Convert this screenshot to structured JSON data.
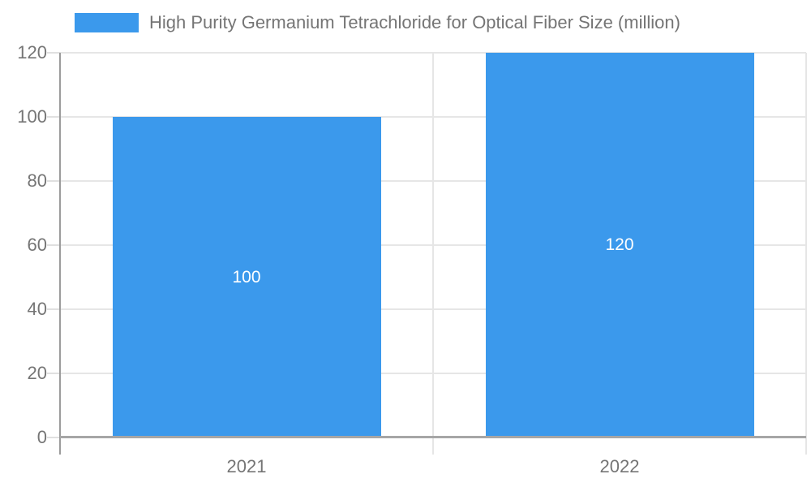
{
  "chart_data": {
    "type": "bar",
    "title": "High Purity Germanium Tetrachloride for Optical Fiber Size (million)",
    "categories": [
      "2021",
      "2022"
    ],
    "values": [
      100,
      120
    ],
    "bar_labels": [
      "100",
      "120"
    ],
    "xlabel": "",
    "ylabel": "",
    "ylim": [
      0,
      120
    ],
    "yticks": [
      0,
      20,
      40,
      60,
      80,
      100,
      120
    ],
    "grid": true,
    "legend": {
      "position": "top-left",
      "label": "High Purity Germanium Tetrachloride for Optical Fiber Size (million)"
    },
    "colors": {
      "bar": "#3b99ec",
      "bar_label_text": "#ffffff",
      "axis_text": "#757575",
      "gridline": "#e6e6e6",
      "tick": "#e0e0e0",
      "axis_line_left": "#9c9c9c",
      "axis_line_bottom": "#a6a6a6",
      "background": "#ffffff"
    }
  }
}
